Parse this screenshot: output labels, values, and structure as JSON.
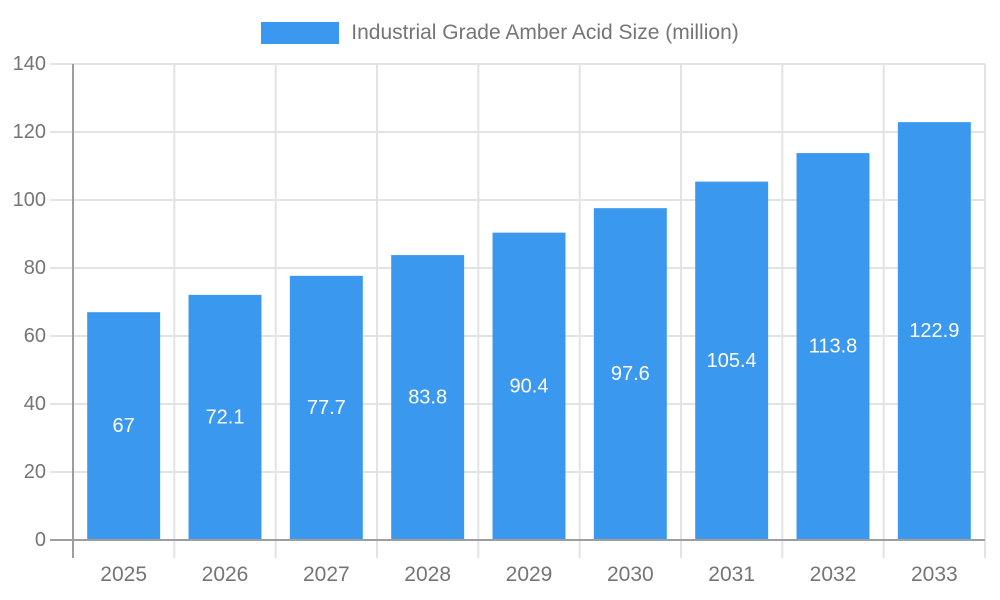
{
  "legend": {
    "label": "Industrial Grade Amber Acid Size (million)"
  },
  "colors": {
    "bar": "#3A99EE",
    "grid_line": "#E3E3E3",
    "axis_line": "#9E9E9E",
    "axis_text": "#757575",
    "value_text": "#FFFFFF",
    "background": "#FFFFFF"
  },
  "chart_data": {
    "type": "bar",
    "title": "Industrial Grade Amber Acid Size (million)",
    "series": [
      {
        "name": "Industrial Grade Amber Acid Size (million)",
        "values": [
          67,
          72.1,
          77.7,
          83.8,
          90.4,
          97.6,
          105.4,
          113.8,
          122.9
        ]
      }
    ],
    "categories": [
      "2025",
      "2026",
      "2027",
      "2028",
      "2029",
      "2030",
      "2031",
      "2032",
      "2033"
    ],
    "xlabel": "",
    "ylabel": "",
    "ylim": [
      0,
      140
    ],
    "yticks": [
      0,
      20,
      40,
      60,
      80,
      100,
      120,
      140
    ],
    "grid": true,
    "legend_position": "top",
    "value_labels": "inside-center"
  }
}
